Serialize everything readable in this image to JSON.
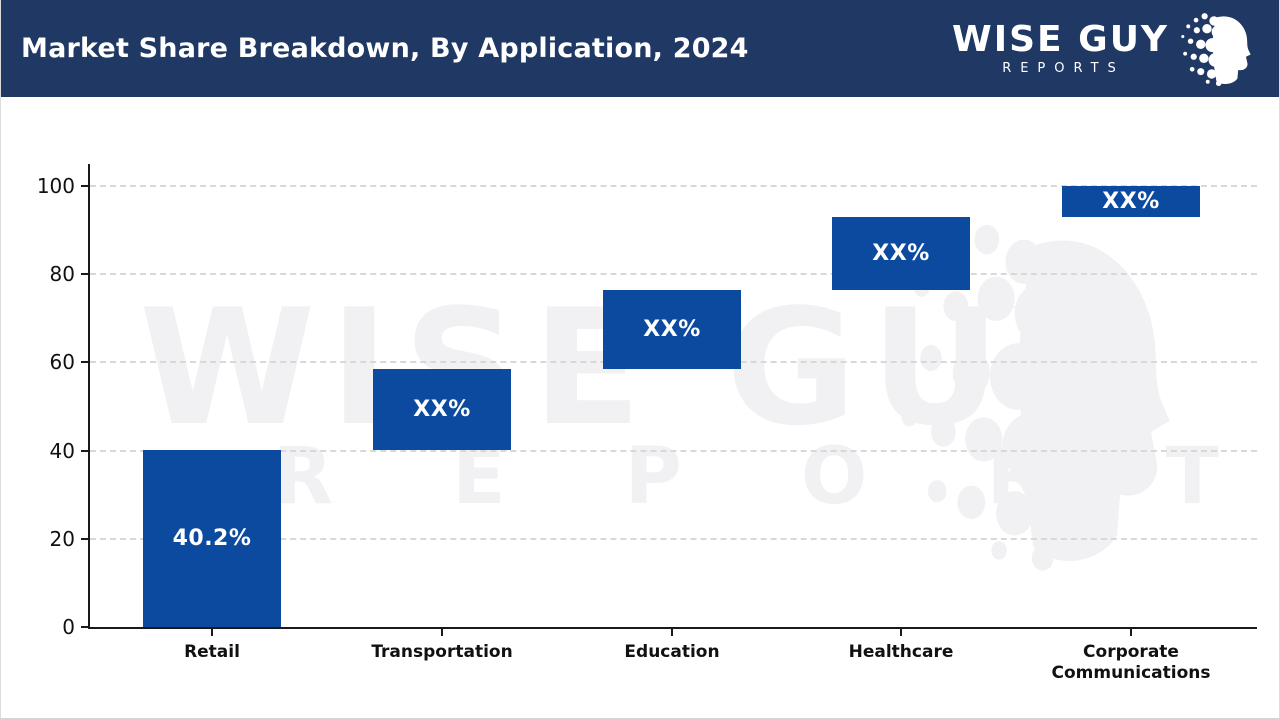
{
  "header": {
    "title": "Market Share Breakdown, By Application, 2024"
  },
  "logo": {
    "line1": "WISE GUY",
    "line2": "REPORTS"
  },
  "watermark": {
    "line1": "WISE GUY",
    "line2": "R E P O R T S"
  },
  "chart_data": {
    "type": "bar",
    "subtype": "waterfall",
    "title": "Market Share Breakdown, By Application, 2024",
    "categories": [
      "Retail",
      "Transportation",
      "Education",
      "Healthcare",
      "Corporate Communications"
    ],
    "segments": [
      {
        "category": "Retail",
        "start": 0,
        "end": 40.2,
        "label": "40.2%"
      },
      {
        "category": "Transportation",
        "start": 40.2,
        "end": 58.5,
        "label": "XX%"
      },
      {
        "category": "Education",
        "start": 58.5,
        "end": 76.5,
        "label": "XX%"
      },
      {
        "category": "Healthcare",
        "start": 76.5,
        "end": 93.0,
        "label": "XX%"
      },
      {
        "category": "Corporate Communications",
        "start": 93.0,
        "end": 100.0,
        "label": "XX%"
      }
    ],
    "yticks": [
      0,
      20,
      40,
      60,
      80,
      100
    ],
    "ylim": [
      0,
      105
    ],
    "xlabel": "",
    "ylabel": "",
    "legend": "none",
    "grid": "horizontal-dashed",
    "bar_color": "#0B4A9F",
    "data_label_color": "#ffffff",
    "gridline_color": "#d8d8d8",
    "axis_color": "#1a1a1a"
  },
  "colors": {
    "header_bg": "#1F3864",
    "page_bg": "#ffffff",
    "watermark": "#f1f1f3"
  }
}
